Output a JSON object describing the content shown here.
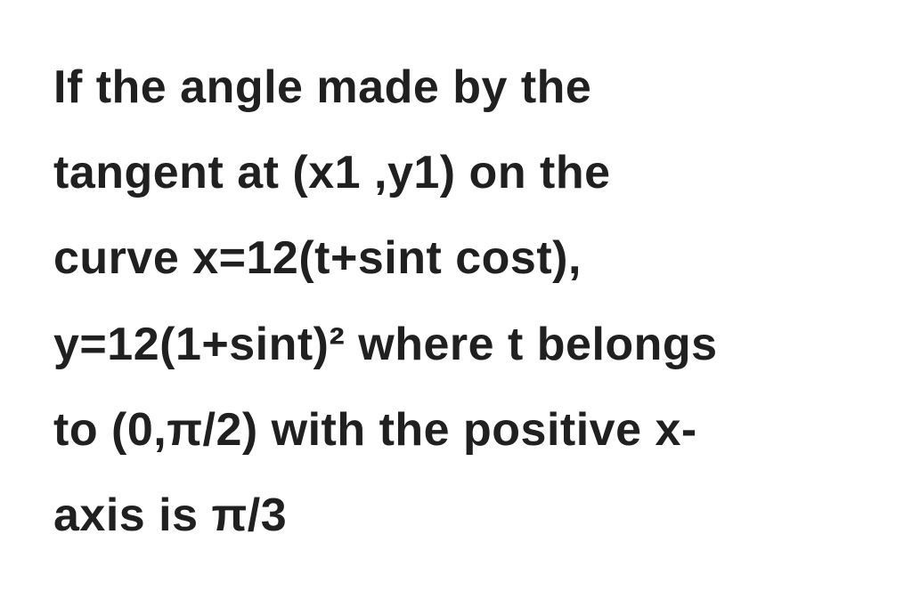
{
  "problem": {
    "line1": "If the angle made by the",
    "line2": "tangent at (x1 ,y1) on the",
    "line3": "curve x=12(t+sint cost),",
    "line4": "y=12(1+sint)² where t belongs",
    "line5": "to (0,π/2) with the positive x-",
    "line6": "axis is π/3",
    "text_color": "#202020",
    "background_color": "#ffffff",
    "font_size": 52,
    "font_weight": 700,
    "line_height": 1.85
  }
}
